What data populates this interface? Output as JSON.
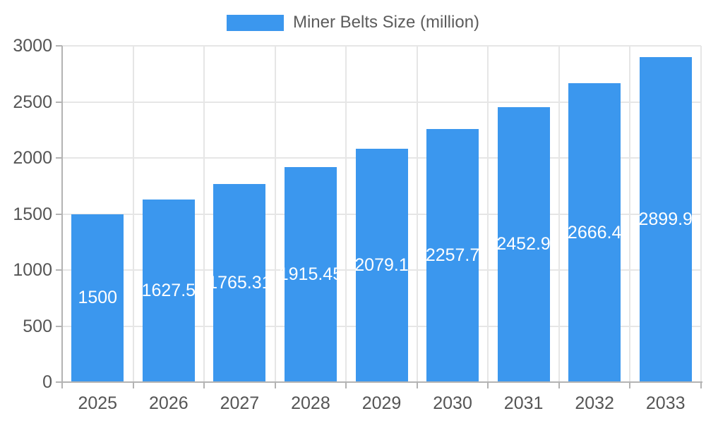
{
  "legend": {
    "label": "Miner Belts Size (million)"
  },
  "colors": {
    "bar": "#3B97EE",
    "grid": "#E6E6E6",
    "axis": "#B3B3B3",
    "tick_text": "#555555",
    "legend_text": "#5C5C5C",
    "bar_label": "#FFFFFF",
    "background": "#FFFFFF"
  },
  "chart_data": {
    "type": "bar",
    "title": "Miner Belts Size (million)",
    "categories": [
      "2025",
      "2026",
      "2027",
      "2028",
      "2029",
      "2030",
      "2031",
      "2032",
      "2033"
    ],
    "values": [
      1500,
      1627.5,
      1765.31,
      1915.45,
      2079.1,
      2257.7,
      2452.9,
      2666.4,
      2899.9
    ],
    "value_labels": [
      "1500",
      "1627.5",
      "1765.31",
      "1915.45",
      "2079.1",
      "2257.7",
      "2452.9",
      "2666.4",
      "2899.9"
    ],
    "series_name": "Miner Belts Size (million)",
    "xlabel": "",
    "ylabel": "",
    "ylim": [
      0,
      3000
    ],
    "yticks": [
      0,
      500,
      1000,
      1500,
      2000,
      2500,
      3000
    ],
    "grid": true,
    "legend_position": "top",
    "value_label_position": "center-inside-bar"
  }
}
